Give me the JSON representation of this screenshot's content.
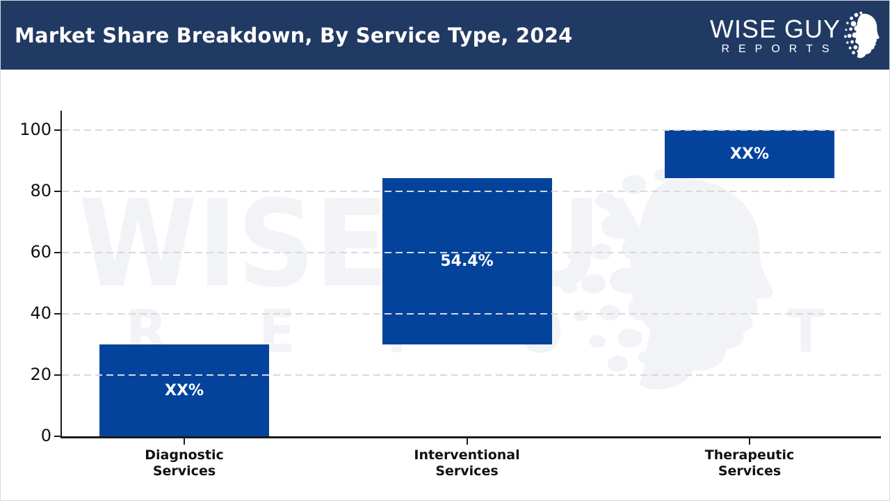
{
  "header": {
    "title": "Market Share Breakdown, By Service Type, 2024",
    "bg_color": "#213a63",
    "logo": {
      "line1": "WISE GUY",
      "line2": "REPORTS",
      "face_icon": "dotted-head-profile"
    }
  },
  "watermark": {
    "line1": "WISE GUY",
    "line2": "R E P O R T S",
    "face_icon": "dotted-head-profile",
    "color": "#f2f3f6"
  },
  "chart_data": {
    "type": "bar",
    "variant": "floating-waterfall",
    "title": "Market Share Breakdown, By Service Type, 2024",
    "categories": [
      [
        "Diagnostic",
        "Services"
      ],
      [
        "Interventional",
        "Services"
      ],
      [
        "Therapeutic",
        "Services"
      ]
    ],
    "segments": [
      {
        "category": "Diagnostic Services",
        "base": 0,
        "top": 30,
        "label": "XX%"
      },
      {
        "category": "Interventional Services",
        "base": 30,
        "top": 84.4,
        "label": "54.4%"
      },
      {
        "category": "Therapeutic Services",
        "base": 84.4,
        "top": 100,
        "label": "XX%"
      }
    ],
    "yticks": [
      0,
      20,
      40,
      60,
      80,
      100
    ],
    "ylim": [
      0,
      106
    ],
    "xlabel": "",
    "ylabel": "",
    "legend": "none",
    "grid": "horizontal-dashed",
    "grid_color": "#d9d9d9",
    "bar_color": "#04439c",
    "bar_label_color": "#ffffff",
    "axis_color": "#1a1a1a"
  }
}
